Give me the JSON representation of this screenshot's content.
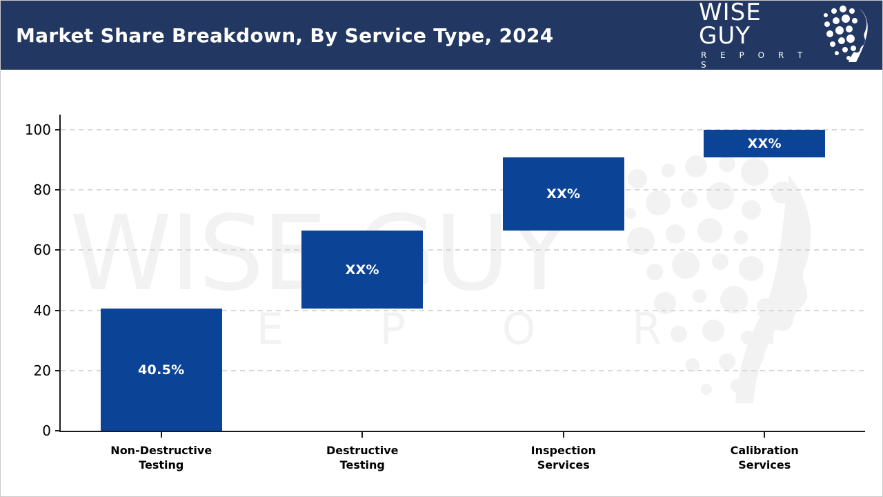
{
  "header": {
    "title": "Market Share Breakdown, By Service Type, 2024",
    "logo": {
      "name_line": "WISE GUY",
      "sub_line": "R E P O R T S"
    }
  },
  "watermark": {
    "big_text": "WISE GUY",
    "sub_text": "R E P O R T S"
  },
  "chart_data": {
    "type": "bar",
    "variant": "waterfall",
    "title": "Market Share Breakdown, By Service Type, 2024",
    "categories": [
      [
        "Non-Destructive",
        "Testing"
      ],
      [
        "Destructive",
        "Testing"
      ],
      [
        "Inspection",
        "Services"
      ],
      [
        "Calibration",
        "Services"
      ]
    ],
    "segments": [
      {
        "category": "Non-Destructive Testing",
        "start": 0,
        "end": 40.5,
        "label": "40.5%"
      },
      {
        "category": "Destructive Testing",
        "start": 40.5,
        "end": 66.5,
        "label": "XX%"
      },
      {
        "category": "Inspection Services",
        "start": 66.5,
        "end": 90.8,
        "label": "XX%"
      },
      {
        "category": "Calibration Services",
        "start": 90.8,
        "end": 100,
        "label": "XX%"
      }
    ],
    "yticks": [
      0,
      20,
      40,
      60,
      80,
      100
    ],
    "ylim": [
      0,
      105
    ],
    "grid": "horizontal-dashed",
    "legend": "none",
    "bar_color": "#0b4397",
    "bar_label_color": "#ffffff",
    "axis_color": "#1a1a1a",
    "gridline_color": "#d8d8d8",
    "header_color": "#223862",
    "watermark_color": "#f2f2f2"
  }
}
